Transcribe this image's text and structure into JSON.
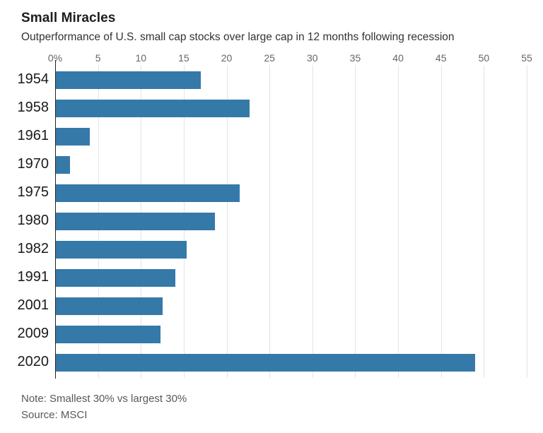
{
  "header": {
    "title": "Small Miracles",
    "subtitle": "Outperformance of U.S. small cap stocks over large cap in 12 months following recession"
  },
  "footer": {
    "note": "Note: Smallest 30% vs largest 30%",
    "source": "Source: MSCI"
  },
  "colors": {
    "bar": "#3579a9",
    "gridline": "#e4e4e4",
    "zero_axis": "#222222",
    "tick_label": "#666666",
    "year_label": "#1a1a1a",
    "footer_text": "#585858"
  },
  "chart_data": {
    "type": "bar",
    "orientation": "horizontal",
    "title": "Small Miracles",
    "subtitle": "Outperformance of U.S. small cap stocks over large cap in 12 months following recession",
    "categories": [
      "1954",
      "1958",
      "1961",
      "1970",
      "1975",
      "1980",
      "1982",
      "1991",
      "2001",
      "2009",
      "2020"
    ],
    "values": [
      17,
      22.7,
      4,
      1.7,
      21.5,
      18.6,
      15.3,
      14,
      12.5,
      12.3,
      49
    ],
    "unit": "%",
    "xlabel": "",
    "ylabel": "",
    "xlim": [
      0,
      55
    ],
    "xticks": [
      0,
      5,
      10,
      15,
      20,
      25,
      30,
      35,
      40,
      45,
      50,
      55
    ],
    "xtick_labels": [
      "0%",
      "5",
      "10",
      "15",
      "20",
      "25",
      "30",
      "35",
      "40",
      "45",
      "50",
      "55"
    ],
    "grid": true,
    "legend": false
  }
}
